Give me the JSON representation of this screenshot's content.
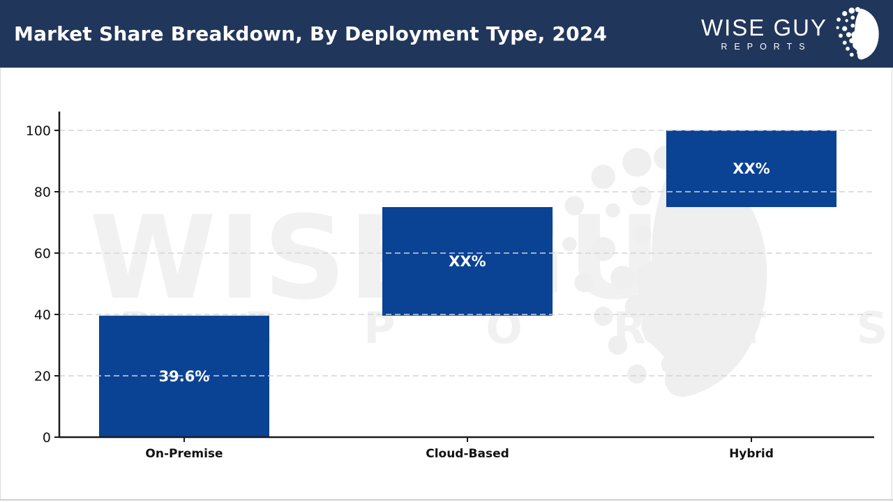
{
  "header": {
    "title": "Market Share Breakdown, By Deployment Type, 2024",
    "logo": {
      "primary": "WISE GUY",
      "secondary": "REPORTS"
    }
  },
  "watermark": {
    "primary": "WISE GUY",
    "secondary": "R E P O R T S"
  },
  "colors": {
    "header_bg": "#21365B",
    "bar": "#0A4294",
    "grid": "#D4D4D4",
    "axis": "#1A1A1A",
    "bar_label": "#FFFFFF",
    "watermark": "#F1F1F1"
  },
  "chart_data": {
    "type": "bar",
    "subtype": "floating-waterfall",
    "title": "Market Share Breakdown, By Deployment Type, 2024",
    "categories": [
      "On-Premise",
      "Cloud-Based",
      "Hybrid"
    ],
    "segments": [
      {
        "category": "On-Premise",
        "start": 0,
        "end": 39.6,
        "label": "39.6%"
      },
      {
        "category": "Cloud-Based",
        "start": 39.6,
        "end": 75,
        "label": "XX%"
      },
      {
        "category": "Hybrid",
        "start": 75,
        "end": 100,
        "label": "XX%"
      }
    ],
    "yticks": [
      0,
      20,
      40,
      60,
      80,
      100
    ],
    "ylim": [
      0,
      106
    ],
    "xlabel": "",
    "ylabel": "",
    "grid": "horizontal-dashed-drawn-over-bars",
    "legend": "none"
  }
}
